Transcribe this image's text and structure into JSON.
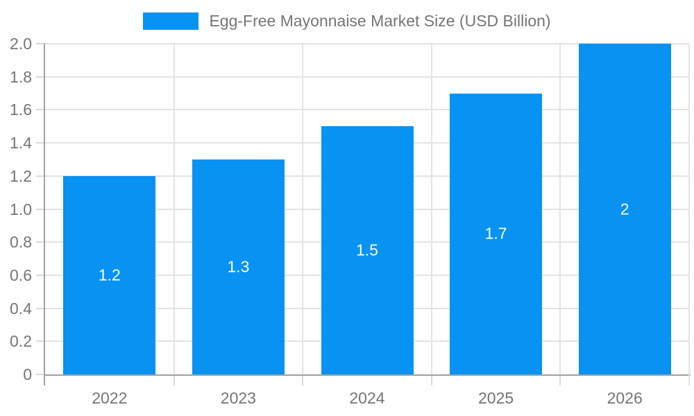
{
  "chart_data": {
    "type": "bar",
    "title": "Egg-Free Mayonnaise Market Size (USD Billion)",
    "legend": {
      "position": "top",
      "entries": [
        "Egg-Free Mayonnaise Market Size (USD Billion)"
      ]
    },
    "categories": [
      "2022",
      "2023",
      "2024",
      "2025",
      "2026"
    ],
    "values": [
      1.2,
      1.3,
      1.5,
      1.7,
      2
    ],
    "bar_value_labels": [
      "1.2",
      "1.3",
      "1.5",
      "1.7",
      "2"
    ],
    "xlabel": "",
    "ylabel": "",
    "ylim": [
      0,
      2
    ],
    "ytick_step": 0.2,
    "ytick_labels": [
      "0",
      "0.2",
      "0.4",
      "0.6",
      "0.8",
      "1.0",
      "1.2",
      "1.4",
      "1.6",
      "1.8",
      "2.0"
    ],
    "grid": true,
    "colors": {
      "bar": "#0892f2",
      "grid": "#e3e3e3",
      "axis": "#a0a0a0",
      "tick": "#d9d9d9",
      "text": "#757575",
      "value_label": "#ffffff",
      "background": "#ffffff"
    }
  }
}
